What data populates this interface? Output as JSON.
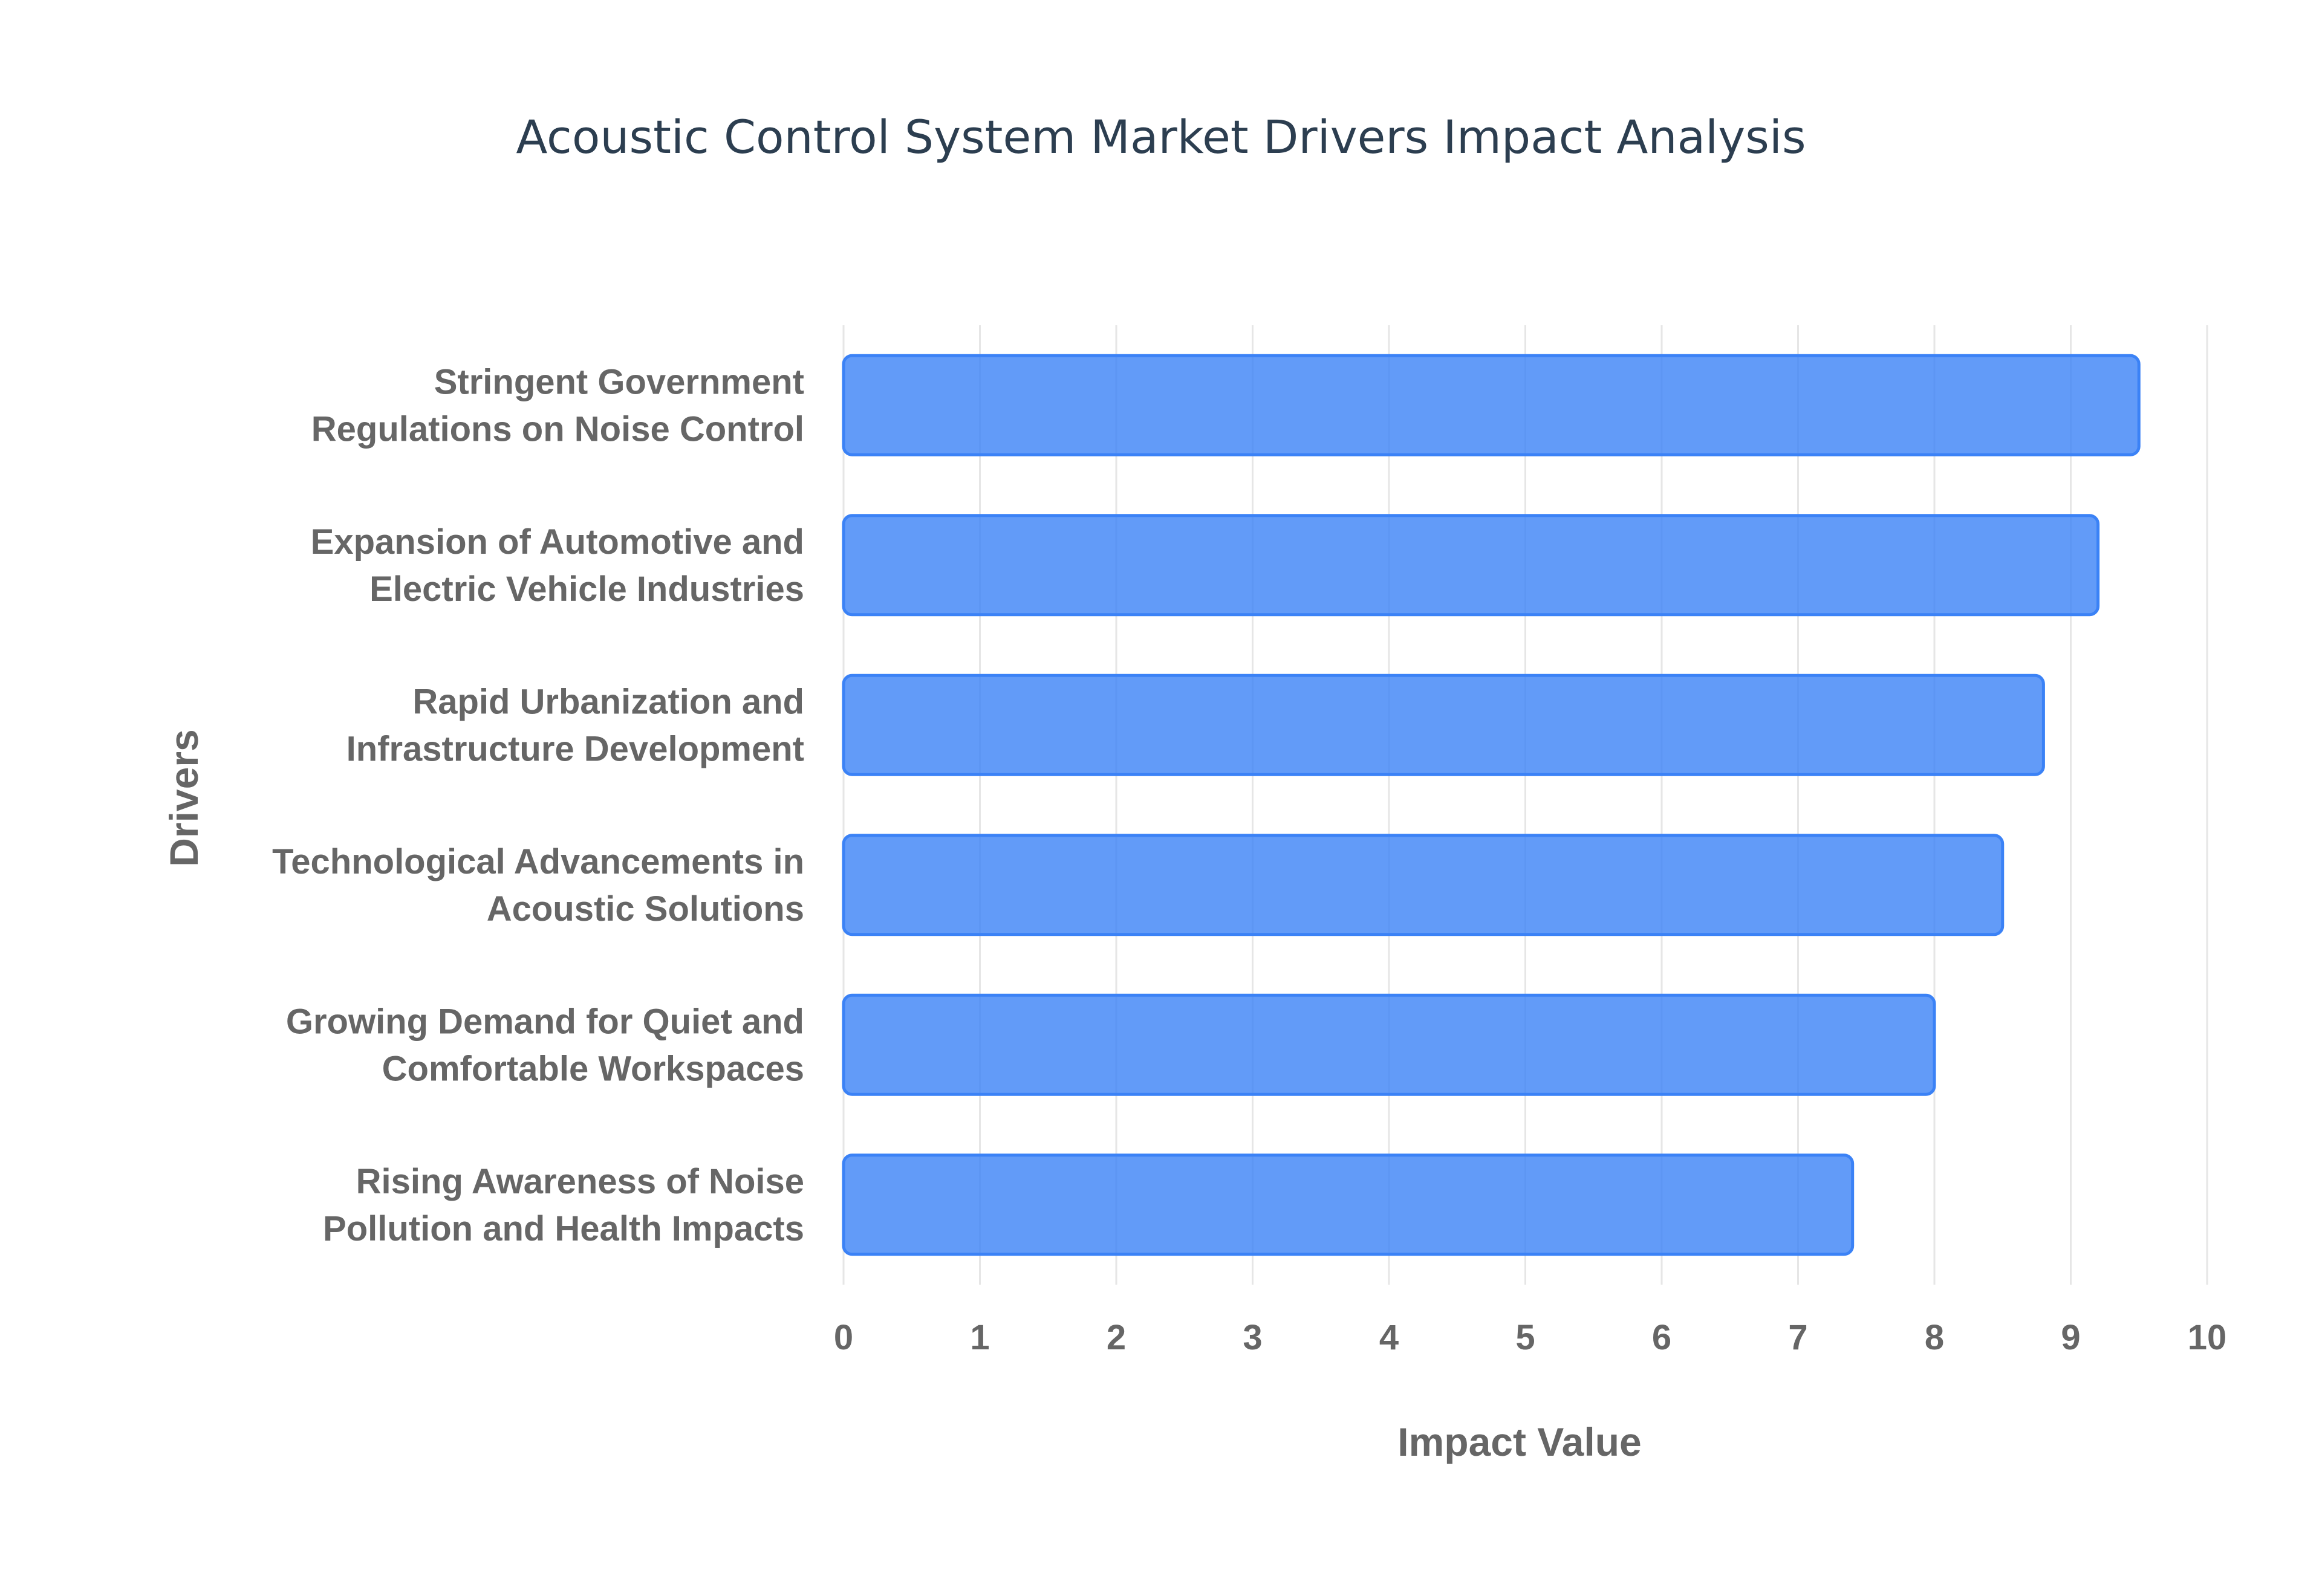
{
  "chart_data": {
    "type": "bar",
    "orientation": "horizontal",
    "title": "Acoustic Control System Market Drivers Impact Analysis",
    "xlabel": "Impact Value",
    "ylabel": "Drivers",
    "xlim": [
      0,
      10
    ],
    "ticks": [
      0,
      1,
      2,
      3,
      4,
      5,
      6,
      7,
      8,
      9,
      10
    ],
    "grid": true,
    "legend": "none",
    "colors": {
      "bar_fill": "#3b82f6",
      "bar_border": "#3b82f6",
      "title": "#2c3e50",
      "text": "#666666"
    },
    "categories": [
      [
        "Stringent Government",
        "Regulations on Noise Control"
      ],
      [
        "Expansion of Automotive and",
        "Electric Vehicle Industries"
      ],
      [
        "Rapid Urbanization and",
        "Infrastructure Development"
      ],
      [
        "Technological Advancements in",
        "Acoustic Solutions"
      ],
      [
        "Growing Demand for Quiet and",
        "Comfortable Workspaces"
      ],
      [
        "Rising Awareness of Noise",
        "Pollution and Health Impacts"
      ]
    ],
    "values": [
      9.5,
      9.2,
      8.8,
      8.5,
      8.0,
      7.4
    ]
  }
}
